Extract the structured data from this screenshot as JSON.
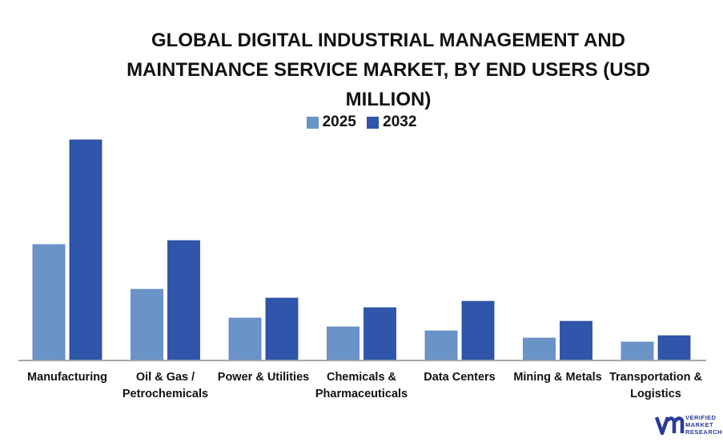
{
  "chart_data": {
    "type": "bar",
    "title": "GLOBAL DIGITAL INDUSTRIAL MANAGEMENT AND MAINTENANCE SERVICE MARKET, BY END USERS (USD MILLION)",
    "categories": [
      "Manufacturing",
      "Oil & Gas / Petrochemicals",
      "Power & Utilities",
      "Chemicals & Pharmaceuticals",
      "Data Centers",
      "Mining & Metals",
      "Transportation & Logistics"
    ],
    "series": [
      {
        "name": "2025",
        "color": "#6a93c8",
        "values": [
          144,
          88,
          52,
          41,
          36,
          27,
          22
        ]
      },
      {
        "name": "2032",
        "color": "#2f56ab",
        "values": [
          275,
          149,
          77,
          65,
          73,
          48,
          30
        ]
      }
    ],
    "xlabel": "",
    "ylabel": "",
    "ylim": [
      0,
      290
    ],
    "value_note_hidden": true,
    "grid": false,
    "legend": "top-center"
  },
  "logo": {
    "text": "VERIFIED MARKET RESEARCH"
  }
}
